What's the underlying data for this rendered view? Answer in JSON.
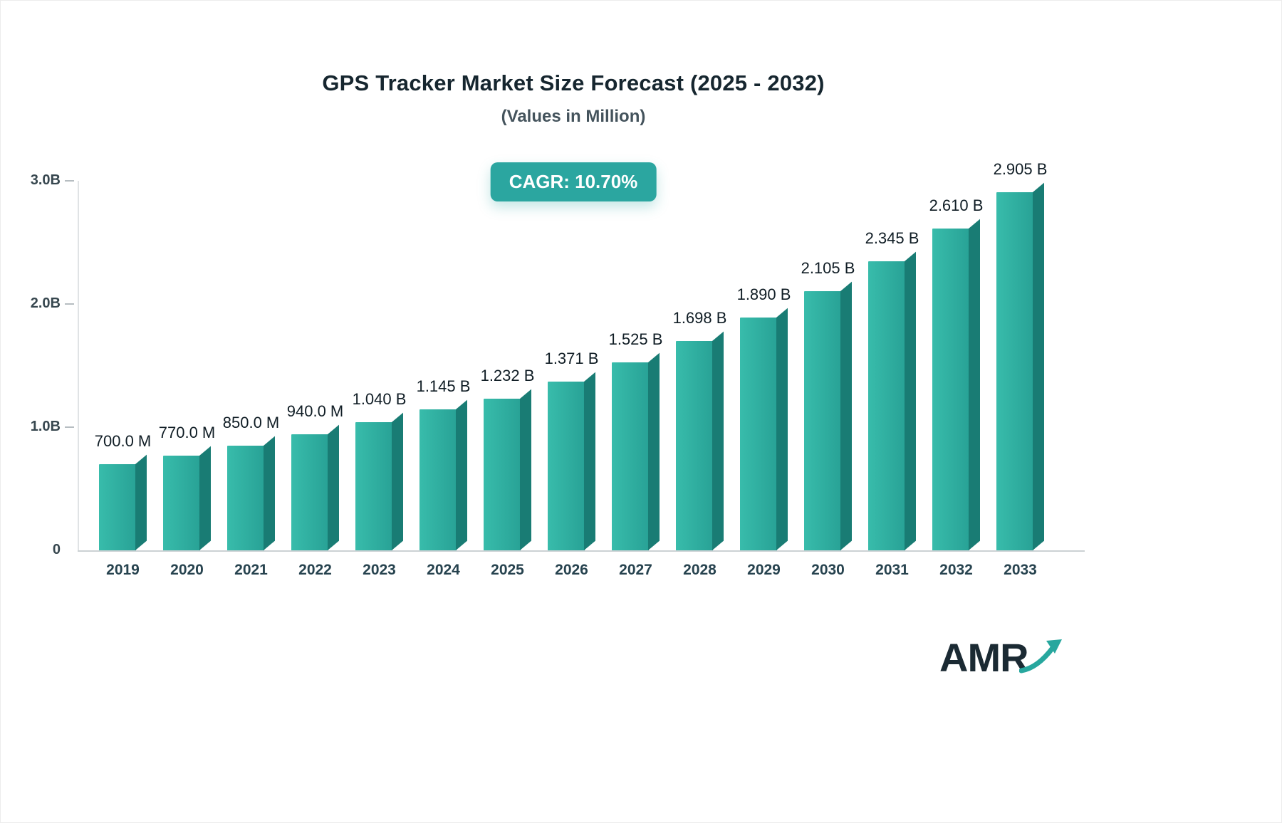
{
  "title": "GPS Tracker Market Size Forecast (2025 - 2032)",
  "subtitle": "(Values in Million)",
  "badge": {
    "label": "CAGR: 10.70%"
  },
  "logo": {
    "text": "AMR"
  },
  "colors": {
    "bar_front_light": "#38bcab",
    "bar_front_dark": "#28a296",
    "bar_side": "#197c74",
    "badge_bg": "#2ba6a0",
    "title_text": "#16262f",
    "axis_text": "#37474f"
  },
  "chart_data": {
    "type": "bar",
    "title": "GPS Tracker Market Size Forecast (2025 - 2032)",
    "subtitle": "(Values in Million)",
    "unit": "Million",
    "cagr": "10.70%",
    "categories": [
      "2019",
      "2020",
      "2021",
      "2022",
      "2023",
      "2024",
      "2025",
      "2026",
      "2027",
      "2028",
      "2029",
      "2030",
      "2031",
      "2032",
      "2033"
    ],
    "values": [
      700,
      770,
      850,
      940,
      1040,
      1145,
      1232,
      1371,
      1525,
      1698,
      1890,
      2105,
      2345,
      2610,
      2905
    ],
    "value_labels": [
      "700.0 M",
      "770.0 M",
      "850.0 M",
      "940.0 M",
      "1.040 B",
      "1.145 B",
      "1.232 B",
      "1.371 B",
      "1.525 B",
      "1.698 B",
      "1.890 B",
      "2.105 B",
      "2.345 B",
      "2.610 B",
      "2.905 B"
    ],
    "xlabel": "",
    "ylabel": "",
    "ylim": [
      0,
      3000
    ],
    "y_ticks": [
      {
        "value": 0,
        "label": "0"
      },
      {
        "value": 1000,
        "label": "1.0B"
      },
      {
        "value": 2000,
        "label": "2.0B"
      },
      {
        "value": 3000,
        "label": "3.0B"
      }
    ],
    "grid": false,
    "legend": "none"
  }
}
